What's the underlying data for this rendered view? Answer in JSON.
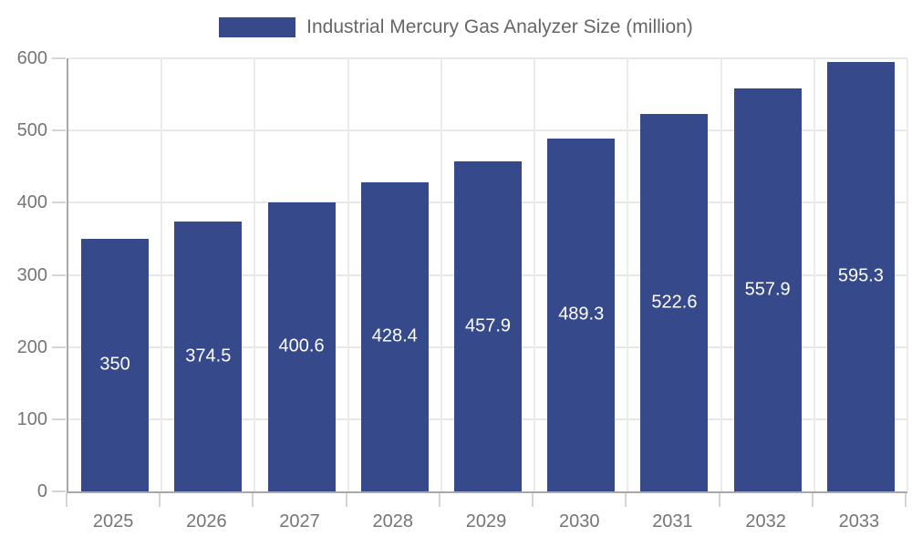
{
  "legend": {
    "label": "Industrial Mercury Gas Analyzer Size (million)"
  },
  "chart_data": {
    "type": "bar",
    "title": "Industrial Mercury Gas Analyzer Size (million)",
    "categories": [
      "2025",
      "2026",
      "2027",
      "2028",
      "2029",
      "2030",
      "2031",
      "2032",
      "2033"
    ],
    "values": [
      350,
      374.5,
      400.6,
      428.4,
      457.9,
      489.3,
      522.6,
      557.9,
      595.3
    ],
    "value_labels": [
      "350",
      "374.5",
      "400.6",
      "428.4",
      "457.9",
      "489.3",
      "522.6",
      "557.9",
      "595.3"
    ],
    "xlabel": "",
    "ylabel": "",
    "ylim": [
      0,
      600
    ],
    "yticks": [
      0,
      100,
      200,
      300,
      400,
      500,
      600
    ],
    "grid": true,
    "legend_position": "top",
    "bar_color": "#36498b",
    "value_label_color": "#ffffff",
    "tick_label_color": "#757575",
    "legend_text_color": "#666666",
    "gridline_color": "#e8e8e8",
    "axis_border_color": "#a8a8a8"
  }
}
